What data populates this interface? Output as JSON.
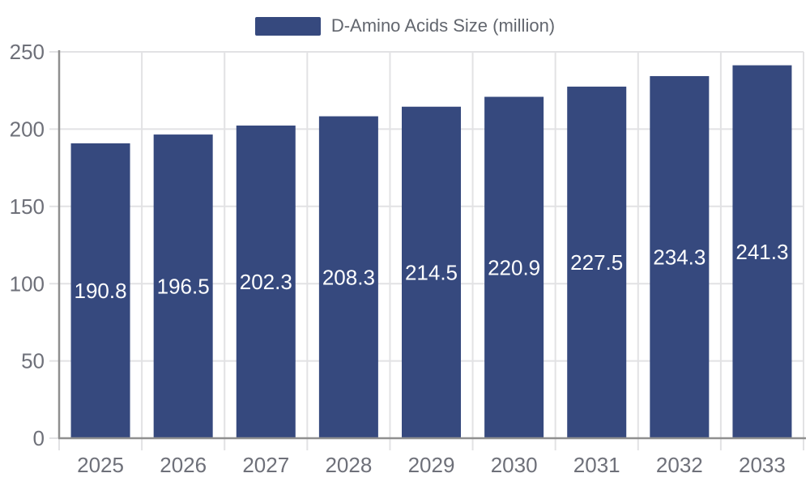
{
  "chart_data": {
    "type": "bar",
    "title": "",
    "xlabel": "",
    "ylabel": "",
    "categories": [
      "2025",
      "2026",
      "2027",
      "2028",
      "2029",
      "2030",
      "2031",
      "2032",
      "2033"
    ],
    "series": [
      {
        "name": "D-Amino Acids Size (million)",
        "values": [
          190.8,
          196.5,
          202.3,
          208.3,
          214.5,
          220.9,
          227.5,
          234.3,
          241.3
        ]
      }
    ],
    "value_labels": [
      "190.8",
      "196.5",
      "202.3",
      "208.3",
      "214.5",
      "220.9",
      "227.5",
      "234.3",
      "241.3"
    ],
    "ylim": [
      0,
      250
    ],
    "yticks": [
      0,
      50,
      100,
      150,
      200,
      250
    ],
    "grid": true,
    "legend_position": "top",
    "value_label_position": "middle",
    "colors": {
      "bar": "#36497E",
      "axis_line": "#8f8f8f",
      "gridline": "#e2e2e4",
      "tick_label": "#6e7079",
      "value_label": "#ffffff",
      "legend_text": "#62666e",
      "background": "#ffffff"
    }
  }
}
